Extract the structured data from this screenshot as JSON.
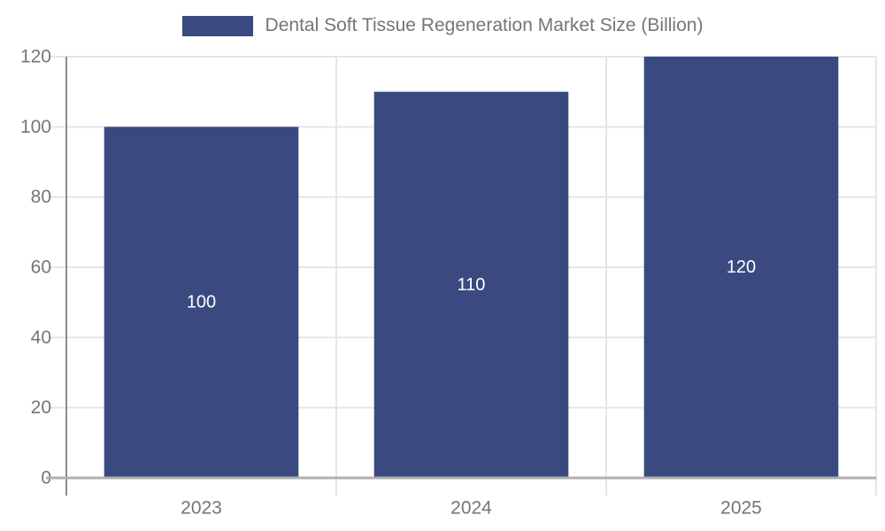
{
  "chart_data": {
    "type": "bar",
    "title": "Dental Soft Tissue Regeneration Market Size (Billion)",
    "categories": [
      "2023",
      "2024",
      "2025"
    ],
    "values": [
      100,
      110,
      120
    ],
    "bar_value_labels": [
      "100",
      "110",
      "120"
    ],
    "xlabel": "",
    "ylabel": "",
    "ylim": [
      0,
      120
    ],
    "yticks": [
      0,
      20,
      40,
      60,
      80,
      100,
      120
    ],
    "grid": true,
    "legend_position": "top-center",
    "legend_entries": [
      "Dental Soft Tissue Regeneration Market Size (Billion)"
    ],
    "colors": {
      "bar": "#3a4a80",
      "bar_value_text": "#ffffff",
      "axis_text": "#757575",
      "gridline": "#e6e6e6",
      "y_axis_line": "#8c8c8c",
      "x_axis_line": "#b0b0b0",
      "background": "#ffffff"
    }
  }
}
